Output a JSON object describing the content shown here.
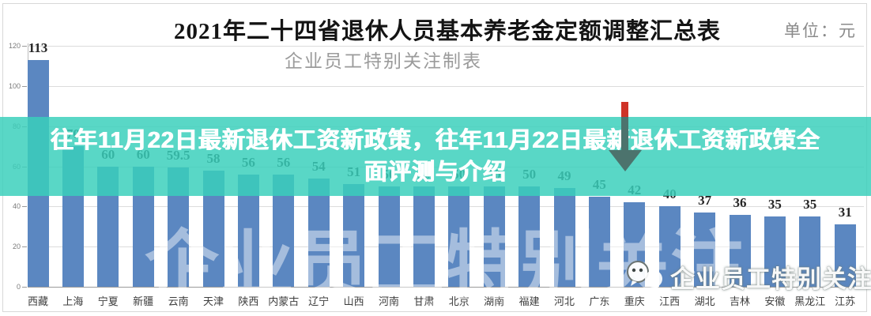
{
  "header": {
    "title": "2021年二十四省退休人员基本养老金定额调整汇总表",
    "subtitle": "企业员工特别关注制表",
    "unit_label": "单位：元"
  },
  "overlay": {
    "line1": "往年11月22日最新退休工资新政策，往年11月22日最新退休工资新政策全",
    "line2": "面评测与介绍",
    "band_color": "#39cfbb",
    "text_color": "#ffffff"
  },
  "watermark": {
    "large_text": "企业员工特别关注",
    "corner_text": "企业员工特别关注",
    "corner_icon": "wechat-chat-bubbles-icon"
  },
  "annotation_arrow": {
    "points_to": "重庆",
    "tip_color": "#cf3328",
    "body_color": "#4c736d"
  },
  "chart_data": {
    "type": "bar",
    "title": "2021年二十四省退休人员基本养老金定额调整汇总表",
    "subtitle": "企业员工特别关注制表",
    "unit": "元",
    "categories": [
      "西藏",
      "上海",
      "宁夏",
      "新疆",
      "云南",
      "天津",
      "陕西",
      "内蒙古",
      "辽宁",
      "山西",
      "河南",
      "甘肃",
      "北京",
      "湖南",
      "福建",
      "河北",
      "广东",
      "重庆",
      "江西",
      "湖北",
      "吉林",
      "安徽",
      "黑龙江",
      "江苏"
    ],
    "values": [
      113,
      70,
      60,
      60,
      59.5,
      58,
      56,
      56,
      54,
      51,
      50,
      50,
      50,
      50,
      50,
      49,
      45,
      42,
      40,
      37,
      36,
      35,
      35,
      31
    ],
    "labels_hidden_by_overlay": [
      "河南",
      "甘肃",
      "北京",
      "湖南"
    ],
    "ylim": [
      0,
      120
    ],
    "yticks": [
      0,
      20,
      40,
      60,
      80,
      100,
      120
    ],
    "grid": true,
    "bar_color": "#5b87c1"
  }
}
